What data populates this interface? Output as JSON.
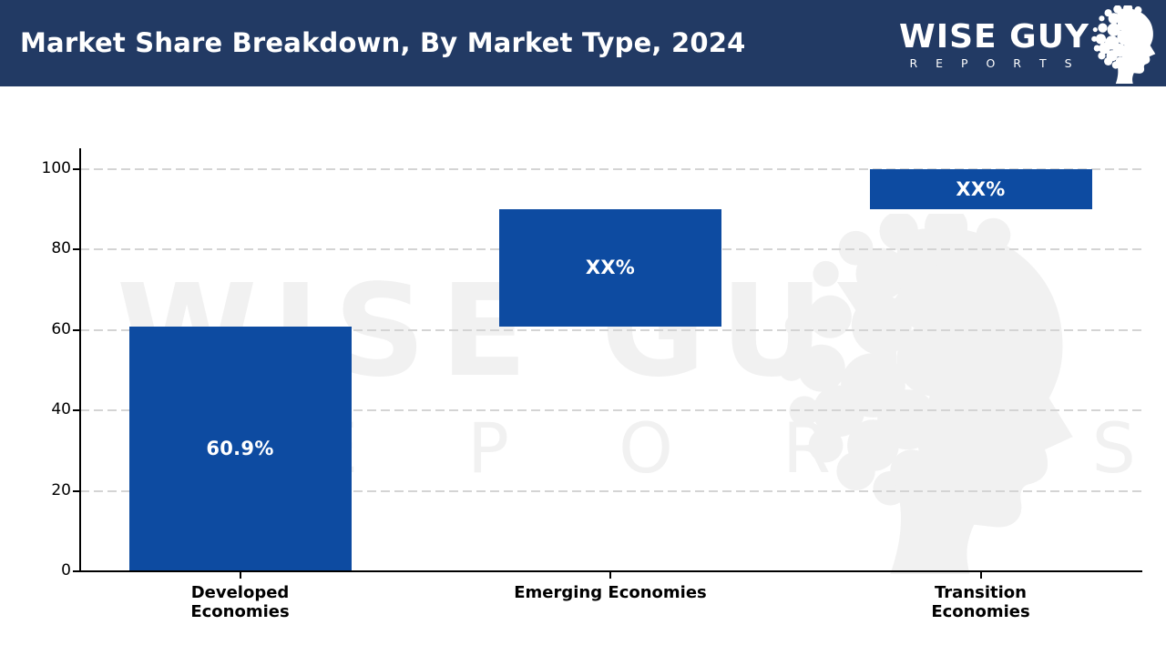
{
  "header": {
    "title": "Market Share Breakdown, By Market Type, 2024",
    "brand": {
      "name_line": "WISE GUY",
      "sub_line": "R E P O R T S"
    },
    "colors": {
      "background": "#223a64",
      "text": "#ffffff"
    }
  },
  "watermark": {
    "line1": "WISE GUY",
    "line2": "R E P O R T S"
  },
  "chart_data": {
    "type": "bar",
    "subtype": "waterfall",
    "title": "Market Share Breakdown, By Market Type, 2024",
    "categories": [
      "Developed Economies",
      "Emerging Economies",
      "Transition Economies"
    ],
    "category_lines": [
      [
        "Developed",
        "Economies"
      ],
      [
        "Emerging Economies"
      ],
      [
        "Transition",
        "Economies"
      ]
    ],
    "segments": [
      {
        "category": "Developed Economies",
        "start": 0,
        "end": 60.9,
        "label": "60.9%"
      },
      {
        "category": "Emerging Economies",
        "start": 60.9,
        "end": 90,
        "label": "XX%"
      },
      {
        "category": "Transition Economies",
        "start": 90,
        "end": 100,
        "label": "XX%"
      }
    ],
    "bar_color": "#0d4ba1",
    "bar_label_color": "#ffffff",
    "ylim": [
      0,
      100
    ],
    "yticks": [
      0,
      20,
      40,
      60,
      80,
      100
    ],
    "grid": {
      "orientation": "horizontal",
      "style": "dashed",
      "color": "#d4d4d4"
    },
    "xlabel": "",
    "ylabel": "",
    "legend": "none"
  }
}
